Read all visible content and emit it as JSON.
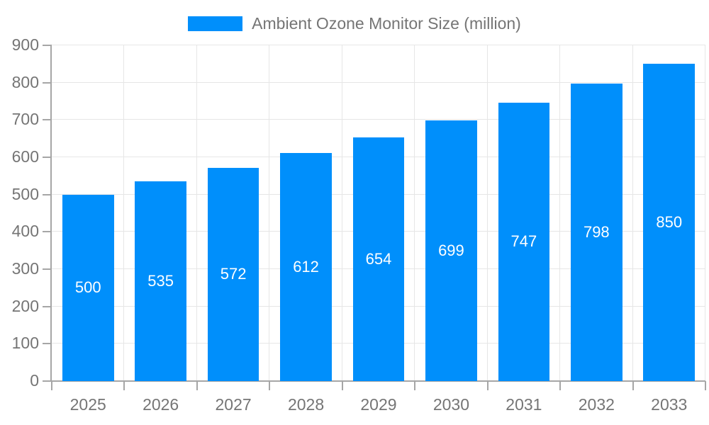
{
  "chart_data": {
    "type": "bar",
    "title": "",
    "categories": [
      "2025",
      "2026",
      "2027",
      "2028",
      "2029",
      "2030",
      "2031",
      "2032",
      "2033"
    ],
    "series": [
      {
        "name": "Ambient Ozone Monitor Size (million)",
        "values": [
          500,
          535,
          572,
          612,
          654,
          699,
          747,
          798,
          850
        ]
      }
    ],
    "xlabel": "",
    "ylabel": "",
    "ylim": [
      0,
      900
    ],
    "yticks": [
      0,
      100,
      200,
      300,
      400,
      500,
      600,
      700,
      800,
      900
    ],
    "grid": "both",
    "legend_position": "top",
    "data_labels_position": "center",
    "colors": {
      "bar": "#008FFB",
      "data_label": "#FFFFFF",
      "axis_label": "#757575",
      "gridline": "#E6E6E6",
      "axis_line": "#A6A6A6"
    }
  }
}
